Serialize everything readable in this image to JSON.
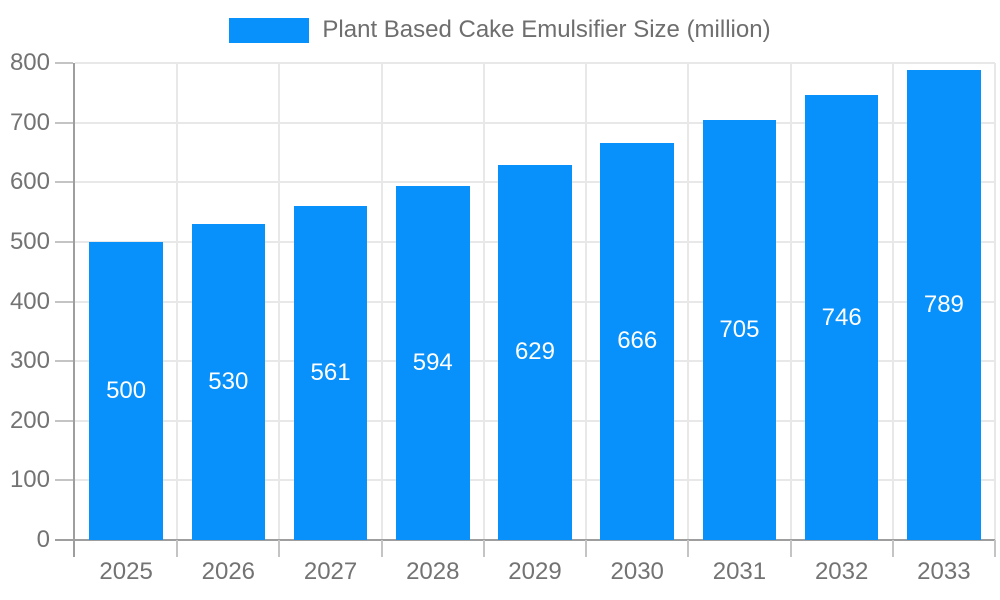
{
  "chart_data": {
    "type": "bar",
    "title": "Plant Based Cake Emulsifier Size (million)",
    "categories": [
      "2025",
      "2026",
      "2027",
      "2028",
      "2029",
      "2030",
      "2031",
      "2032",
      "2033"
    ],
    "values": [
      500,
      530,
      561,
      594,
      629,
      666,
      705,
      746,
      789
    ],
    "xlabel": "",
    "ylabel": "",
    "ylim": [
      0,
      800
    ],
    "ytick_step": 100,
    "grid": "both",
    "legend_position": "top",
    "colors": {
      "bar": "#0991fb",
      "value_label": "#ffffff",
      "axis_text": "#737373",
      "legend_text": "#6e6e6e",
      "grid_line": "#e8e8e8",
      "axis_line": "#9e9e9e",
      "tick_mark": "#c4c4c4",
      "background": "#ffffff"
    }
  }
}
